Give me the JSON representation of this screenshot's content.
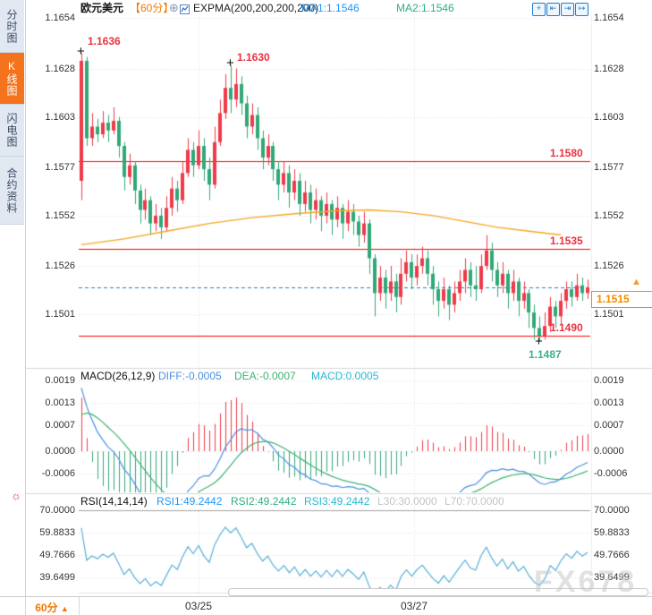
{
  "header": {
    "symbol": "欧元美元",
    "period": "【60分】",
    "indicator_label": "EXPMA(200,200,200,200)",
    "ma1": "MA1:1.1546",
    "ma2": "MA2:1.1546"
  },
  "icons": {
    "plus_circle": "⊕",
    "marker_cross": "+",
    "arrow_up": "▲",
    "sun": "☼",
    "toolbar": [
      "+",
      "⇤",
      "⇥",
      "↦"
    ]
  },
  "sidebar": {
    "tabs": [
      {
        "label": "分时图",
        "active": false
      },
      {
        "label": "K线图",
        "active": true
      },
      {
        "label": "闪电图",
        "active": false
      },
      {
        "label": "合约资料",
        "active": false
      }
    ]
  },
  "macd_header": {
    "title": "MACD(26,12,9)",
    "diff": "DIFF:-0.0005",
    "dea": "DEA:-0.0007",
    "macd": "MACD:0.0005"
  },
  "rsi_header": {
    "title": "RSI(14,14,14)",
    "rsi1": "RSI1:49.2442",
    "rsi2": "RSI2:49.2442",
    "rsi3": "RSI3:49.2442",
    "l30": "L30:30.0000",
    "l70": "L70:70.0000"
  },
  "annotations": {
    "high1": "1.1636",
    "high2": "1.1630",
    "res1": "1.1580",
    "res2": "1.1535",
    "sup1": "1.1490",
    "low": "1.1487",
    "current": "1.1515"
  },
  "bottom": {
    "period": "60分",
    "arrow": "▲",
    "dates": [
      "03/25",
      "03/27"
    ]
  },
  "watermark": "FX678",
  "colors": {
    "up": "#ef3a49",
    "down": "#30a878",
    "level_line": "#ff0000",
    "current_line": "#1f7fd4",
    "price_box": "#f08c00",
    "expma": "#f5a623",
    "diff_line": "#4a90e2",
    "dea_line": "#3cb371",
    "hist_pos": "#ef3a49",
    "hist_neg": "#30a878",
    "rsi_line": "#58b0d8",
    "accent": "#f4731c",
    "ma1_text": "#2196f3",
    "ma2_text": "#2eaf7c",
    "macd_text": "#29b6cf",
    "grey_label": "#c4c4c4",
    "grid": "#dcdfe9",
    "anno_red": "#e8333f",
    "anno_green": "#3eaf8c"
  },
  "chart_data": {
    "type": "candlestick",
    "title": "欧元美元 60分 K线图 (EUR/USD 60-minute candlestick)",
    "y_axis_ticks": [
      1.1654,
      1.1628,
      1.1603,
      1.1577,
      1.1552,
      1.1526,
      1.1501
    ],
    "levels": {
      "resistance": [
        1.158,
        1.1535
      ],
      "support": [
        1.149
      ],
      "current": 1.1515,
      "high": 1.1636,
      "swing_high": 1.163,
      "low": 1.1487
    },
    "annotation_idx": {
      "high1": 0,
      "high2": 28,
      "low": 86
    },
    "x_axis": {
      "labels": [
        "03/25",
        "03/27"
      ],
      "fracs": [
        0.235,
        0.655
      ]
    },
    "candles": [
      [
        1.157,
        1.1636,
        1.156,
        1.1632
      ],
      [
        1.1632,
        1.1634,
        1.1588,
        1.1592
      ],
      [
        1.1592,
        1.1605,
        1.1588,
        1.1598
      ],
      [
        1.1598,
        1.1602,
        1.159,
        1.1594
      ],
      [
        1.1594,
        1.1606,
        1.1592,
        1.16
      ],
      [
        1.16,
        1.1604,
        1.159,
        1.1596
      ],
      [
        1.1596,
        1.1608,
        1.1594,
        1.1601
      ],
      [
        1.1601,
        1.1603,
        1.1582,
        1.1588
      ],
      [
        1.1588,
        1.159,
        1.1565,
        1.1572
      ],
      [
        1.1572,
        1.1584,
        1.1568,
        1.1578
      ],
      [
        1.1578,
        1.158,
        1.1558,
        1.1565
      ],
      [
        1.1565,
        1.1568,
        1.1548,
        1.1555
      ],
      [
        1.1555,
        1.1566,
        1.155,
        1.156
      ],
      [
        1.156,
        1.1562,
        1.1542,
        1.1548
      ],
      [
        1.1548,
        1.1558,
        1.1544,
        1.1552
      ],
      [
        1.1552,
        1.1556,
        1.154,
        1.1546
      ],
      [
        1.1546,
        1.1562,
        1.1544,
        1.1556
      ],
      [
        1.1556,
        1.1572,
        1.1552,
        1.1566
      ],
      [
        1.1566,
        1.157,
        1.1554,
        1.156
      ],
      [
        1.156,
        1.158,
        1.1558,
        1.1574
      ],
      [
        1.1574,
        1.1592,
        1.1572,
        1.1586
      ],
      [
        1.1586,
        1.159,
        1.1572,
        1.1578
      ],
      [
        1.1578,
        1.1596,
        1.1576,
        1.1588
      ],
      [
        1.1588,
        1.1592,
        1.157,
        1.1576
      ],
      [
        1.1576,
        1.1582,
        1.156,
        1.1568
      ],
      [
        1.1568,
        1.1598,
        1.1566,
        1.159
      ],
      [
        1.159,
        1.1612,
        1.1588,
        1.1605
      ],
      [
        1.1605,
        1.1625,
        1.1602,
        1.1618
      ],
      [
        1.1618,
        1.163,
        1.1605,
        1.1612
      ],
      [
        1.1612,
        1.1628,
        1.1608,
        1.162
      ],
      [
        1.162,
        1.1624,
        1.1604,
        1.161
      ],
      [
        1.161,
        1.1614,
        1.1592,
        1.1598
      ],
      [
        1.1598,
        1.161,
        1.1594,
        1.1604
      ],
      [
        1.1604,
        1.1608,
        1.1586,
        1.1592
      ],
      [
        1.1592,
        1.1596,
        1.1576,
        1.1582
      ],
      [
        1.1582,
        1.1594,
        1.1578,
        1.1588
      ],
      [
        1.1588,
        1.159,
        1.157,
        1.1576
      ],
      [
        1.1576,
        1.158,
        1.156,
        1.1568
      ],
      [
        1.1568,
        1.158,
        1.1564,
        1.1574
      ],
      [
        1.1574,
        1.1578,
        1.1556,
        1.1564
      ],
      [
        1.1564,
        1.1576,
        1.156,
        1.157
      ],
      [
        1.157,
        1.1574,
        1.1552,
        1.1558
      ],
      [
        1.1558,
        1.157,
        1.1554,
        1.1564
      ],
      [
        1.1564,
        1.1568,
        1.1548,
        1.1555
      ],
      [
        1.1555,
        1.1566,
        1.155,
        1.156
      ],
      [
        1.156,
        1.1562,
        1.1544,
        1.1552
      ],
      [
        1.1552,
        1.1564,
        1.1548,
        1.1558
      ],
      [
        1.1558,
        1.156,
        1.1542,
        1.155
      ],
      [
        1.155,
        1.1562,
        1.1546,
        1.1556
      ],
      [
        1.1556,
        1.1558,
        1.154,
        1.1548
      ],
      [
        1.1548,
        1.156,
        1.1544,
        1.1554
      ],
      [
        1.1554,
        1.1558,
        1.1542,
        1.1549
      ],
      [
        1.1549,
        1.1552,
        1.1536,
        1.1542
      ],
      [
        1.1542,
        1.1554,
        1.1538,
        1.1548
      ],
      [
        1.1548,
        1.155,
        1.1522,
        1.153
      ],
      [
        1.153,
        1.1532,
        1.15,
        1.1512
      ],
      [
        1.1512,
        1.1526,
        1.1508,
        1.152
      ],
      [
        1.152,
        1.1524,
        1.1504,
        1.1512
      ],
      [
        1.1512,
        1.1526,
        1.1508,
        1.1518
      ],
      [
        1.1518,
        1.1522,
        1.1502,
        1.151
      ],
      [
        1.151,
        1.153,
        1.1506,
        1.1522
      ],
      [
        1.1522,
        1.1534,
        1.1518,
        1.1528
      ],
      [
        1.1528,
        1.1532,
        1.1514,
        1.152
      ],
      [
        1.152,
        1.1532,
        1.1516,
        1.1526
      ],
      [
        1.1526,
        1.1536,
        1.1522,
        1.153
      ],
      [
        1.153,
        1.1534,
        1.1516,
        1.1522
      ],
      [
        1.1522,
        1.1526,
        1.1506,
        1.1514
      ],
      [
        1.1514,
        1.1518,
        1.15,
        1.1508
      ],
      [
        1.1508,
        1.152,
        1.1504,
        1.1514
      ],
      [
        1.1514,
        1.1516,
        1.1498,
        1.1506
      ],
      [
        1.1506,
        1.1518,
        1.1502,
        1.1512
      ],
      [
        1.1512,
        1.1524,
        1.1508,
        1.1518
      ],
      [
        1.1518,
        1.153,
        1.1512,
        1.1524
      ],
      [
        1.1524,
        1.1528,
        1.151,
        1.1516
      ],
      [
        1.1516,
        1.1526,
        1.1508,
        1.1514
      ],
      [
        1.1514,
        1.1532,
        1.1512,
        1.1526
      ],
      [
        1.1526,
        1.1542,
        1.1524,
        1.1534
      ],
      [
        1.1534,
        1.1538,
        1.1518,
        1.1524
      ],
      [
        1.1524,
        1.1528,
        1.151,
        1.1516
      ],
      [
        1.1516,
        1.1528,
        1.1512,
        1.1522
      ],
      [
        1.1522,
        1.1524,
        1.1504,
        1.1512
      ],
      [
        1.1512,
        1.1524,
        1.1508,
        1.1518
      ],
      [
        1.1518,
        1.152,
        1.15,
        1.1508
      ],
      [
        1.1508,
        1.1518,
        1.1504,
        1.1512
      ],
      [
        1.1512,
        1.1514,
        1.1494,
        1.1502
      ],
      [
        1.1502,
        1.1506,
        1.1488,
        1.1494
      ],
      [
        1.1494,
        1.15,
        1.1487,
        1.149
      ],
      [
        1.149,
        1.1502,
        1.1488,
        1.1495
      ],
      [
        1.1495,
        1.151,
        1.1492,
        1.1505
      ],
      [
        1.1505,
        1.1508,
        1.1494,
        1.15
      ],
      [
        1.15,
        1.1512,
        1.1496,
        1.1508
      ],
      [
        1.1508,
        1.1518,
        1.1504,
        1.1514
      ],
      [
        1.1514,
        1.1518,
        1.1505,
        1.151
      ],
      [
        1.151,
        1.1522,
        1.1508,
        1.1516
      ],
      [
        1.1516,
        1.152,
        1.1508,
        1.1512
      ],
      [
        1.1512,
        1.1519,
        1.1509,
        1.1515
      ]
    ],
    "expma": {
      "label": "EXPMA(200,200,200,200)",
      "ma1": 1.1546,
      "ma2": 1.1546,
      "points": [
        [
          0,
          1.1537
        ],
        [
          8,
          1.154
        ],
        [
          16,
          1.1544
        ],
        [
          24,
          1.1548
        ],
        [
          32,
          1.1551
        ],
        [
          40,
          1.1553
        ],
        [
          48,
          1.15545
        ],
        [
          54,
          1.1555
        ],
        [
          60,
          1.1554
        ],
        [
          66,
          1.1552
        ],
        [
          72,
          1.1549
        ],
        [
          78,
          1.1546
        ],
        [
          84,
          1.1544
        ],
        [
          90,
          1.1542
        ]
      ]
    },
    "macd": {
      "params": [
        26,
        12,
        9
      ],
      "diff": -0.0005,
      "dea": -0.0007,
      "macd": 0.0005,
      "y_ticks": [
        0.0019,
        0.0013,
        0.0007,
        0.0,
        -0.0006
      ],
      "seeds": {
        "ema_fast": 1.164,
        "ema_slow": 1.1621,
        "dea": 0.0008
      }
    },
    "rsi": {
      "params": [
        14,
        14,
        14
      ],
      "rsi1": 49.2442,
      "rsi2": 49.2442,
      "rsi3": 49.2442,
      "l30": 30.0,
      "l70": 70.0,
      "y_ticks": [
        70.0,
        59.8833,
        49.7666,
        39.6499
      ],
      "seeds": {
        "avg_gain": 0.00062,
        "avg_loss": 0.00038
      }
    }
  }
}
